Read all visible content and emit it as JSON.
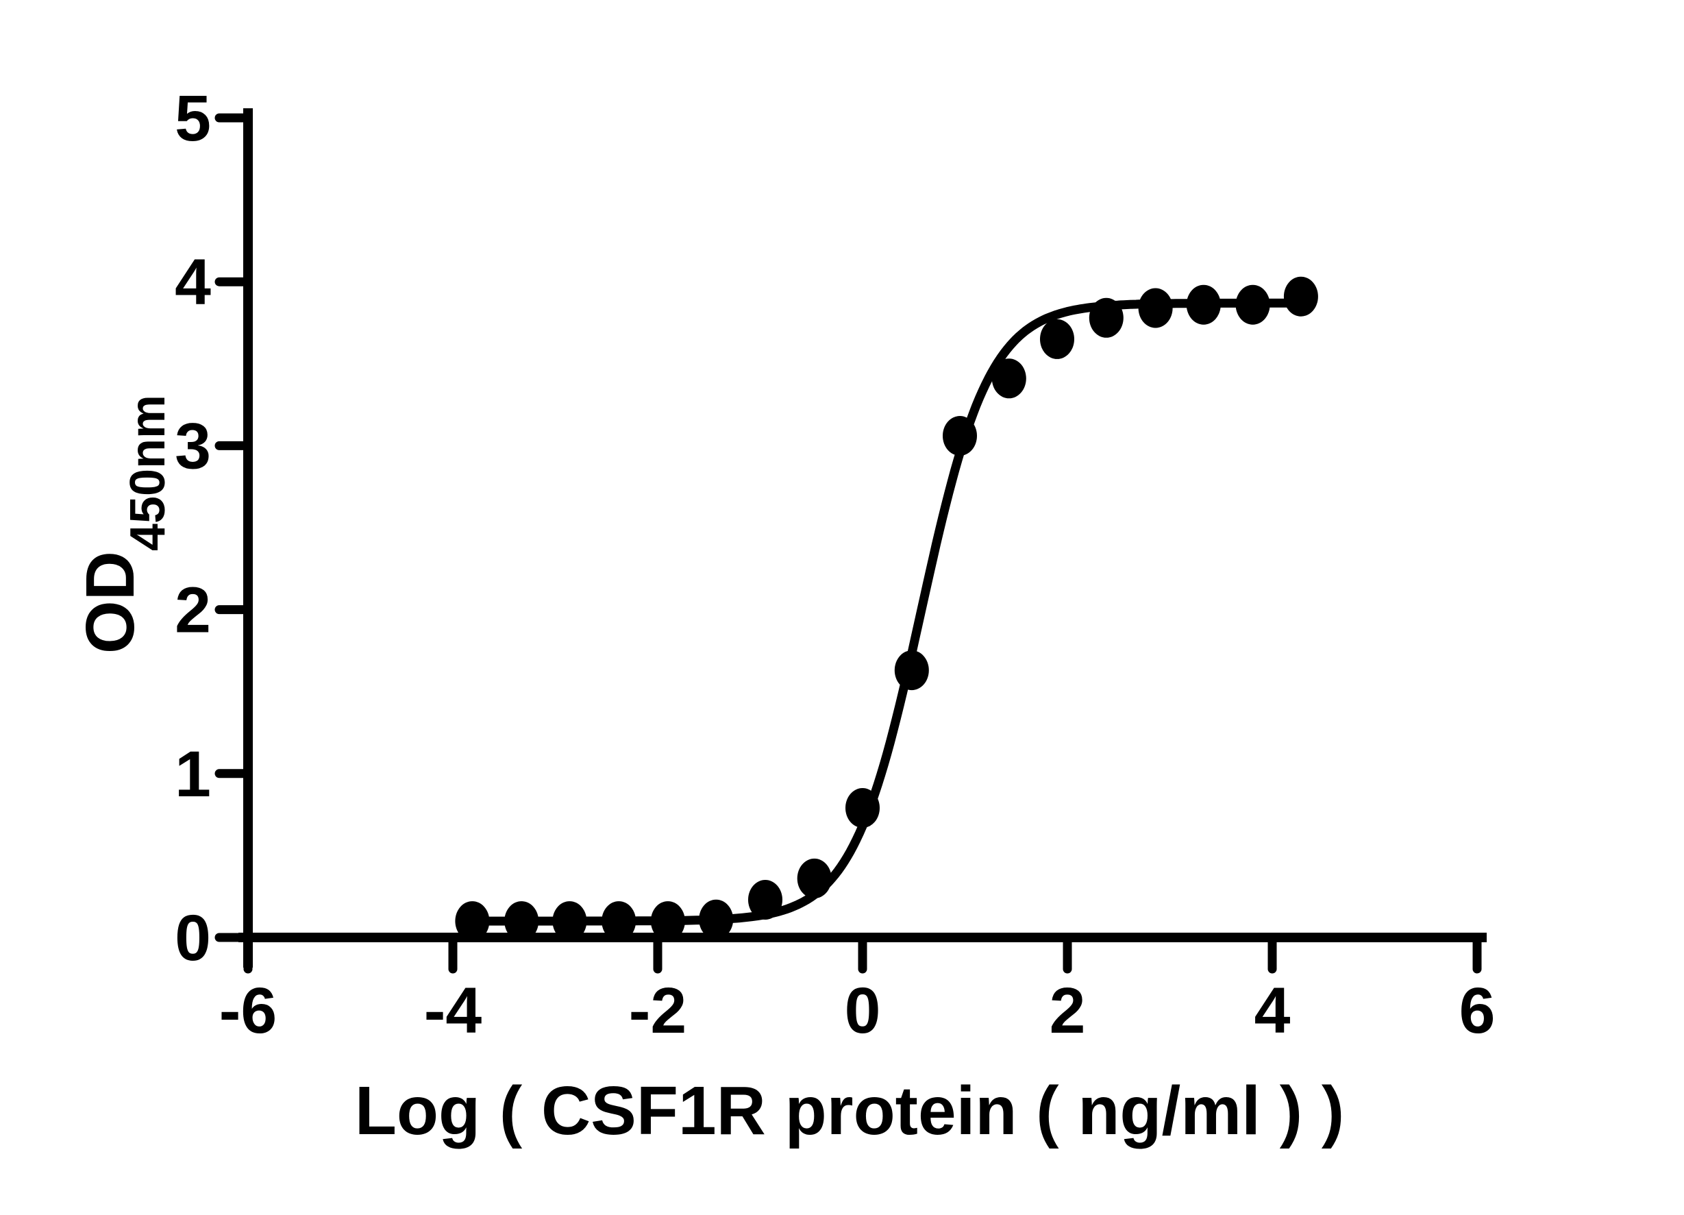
{
  "chart_data": {
    "type": "scatter",
    "title": "",
    "xlabel": "Log ( CSF1R protein ( ng/ml )   )",
    "ylabel": "OD",
    "ylabel_subscript": "450nm",
    "xlim": [
      -6,
      6
    ],
    "ylim": [
      0,
      5
    ],
    "x_ticks": [
      -6,
      -4,
      -2,
      0,
      2,
      4,
      6
    ],
    "y_ticks": [
      0,
      1,
      2,
      3,
      4,
      5
    ],
    "grid": false,
    "legend": "none",
    "marker": "filled-circle",
    "points": [
      [
        -3.81,
        0.1
      ],
      [
        -3.33,
        0.1
      ],
      [
        -2.86,
        0.1
      ],
      [
        -2.38,
        0.1
      ],
      [
        -1.9,
        0.1
      ],
      [
        -1.43,
        0.11
      ],
      [
        -0.95,
        0.23
      ],
      [
        -0.47,
        0.36
      ],
      [
        0.0,
        0.79
      ],
      [
        0.48,
        1.63
      ],
      [
        0.95,
        3.06
      ],
      [
        1.43,
        3.41
      ],
      [
        1.9,
        3.65
      ],
      [
        2.38,
        3.78
      ],
      [
        2.86,
        3.84
      ],
      [
        3.33,
        3.86
      ],
      [
        3.81,
        3.86
      ],
      [
        4.28,
        3.91
      ]
    ],
    "fit_curve": {
      "model": "4PL-sigmoid",
      "bottom": 0.1,
      "top": 3.87,
      "logEC50": 0.57,
      "hill": 1.3,
      "x_start": -3.81,
      "x_end": 4.28
    }
  },
  "colors": {
    "foreground": "#000000",
    "background": "#ffffff"
  }
}
